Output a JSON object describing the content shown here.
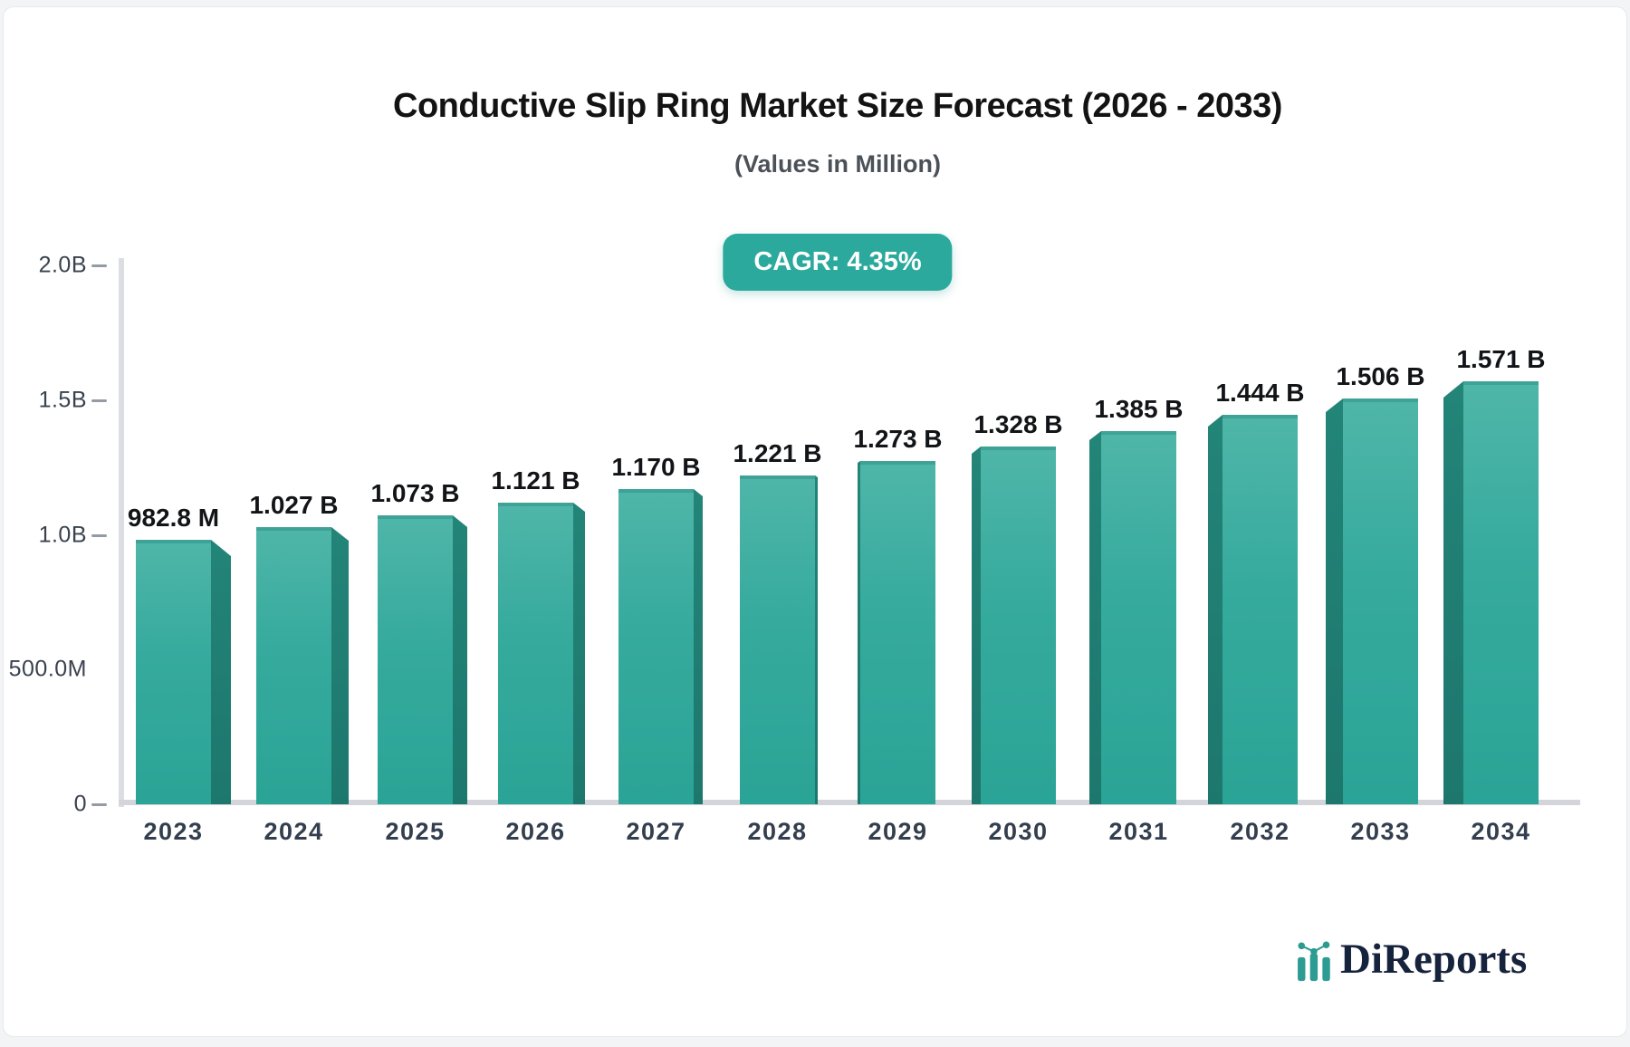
{
  "page": {
    "background": "#f2f4f6",
    "card_background": "#ffffff"
  },
  "header": {
    "title": "Conductive Slip Ring Market Size Forecast (2026 - 2033)",
    "subtitle": "(Values in Million)"
  },
  "badge": {
    "label": "CAGR: 4.35%",
    "background": "#2BA99C",
    "text_color": "#ffffff"
  },
  "chart_data": {
    "type": "bar",
    "title": "Conductive Slip Ring Market Size Forecast (2026 - 2033)",
    "subtitle": "(Values in Million)",
    "cagr_percent": 4.35,
    "categories": [
      "2023",
      "2024",
      "2025",
      "2026",
      "2027",
      "2028",
      "2029",
      "2030",
      "2031",
      "2032",
      "2033",
      "2034"
    ],
    "values_millions": [
      982.8,
      1027,
      1073,
      1121,
      1170,
      1221,
      1273,
      1328,
      1385,
      1444,
      1506,
      1571
    ],
    "value_labels": [
      "982.8 M",
      "1.027 B",
      "1.073 B",
      "1.121 B",
      "1.170 B",
      "1.221 B",
      "1.273 B",
      "1.328 B",
      "1.385 B",
      "1.444 B",
      "1.506 B",
      "1.571 B"
    ],
    "ylim_millions": [
      0,
      2000
    ],
    "yticks": [
      {
        "label": "2.0B",
        "value_millions": 2000,
        "dash": true
      },
      {
        "label": "1.5B",
        "value_millions": 1500,
        "dash": true
      },
      {
        "label": "1.0B",
        "value_millions": 1000,
        "dash": true
      },
      {
        "label": "500.0M",
        "value_millions": 500,
        "dash": false
      },
      {
        "label": "0",
        "value_millions": 0,
        "dash": true
      }
    ],
    "grid": false,
    "legend": "none",
    "bar_color_top": "#4FB6A9",
    "bar_color_bottom": "#2AA496",
    "bar_side_color": "#1D776D",
    "axis_color": "#d3d5da"
  },
  "logo": {
    "text": "DiReports",
    "icon": "bar-chart-trend-icon",
    "text_color": "#16233C",
    "accent_color": "#2B9A8F"
  }
}
